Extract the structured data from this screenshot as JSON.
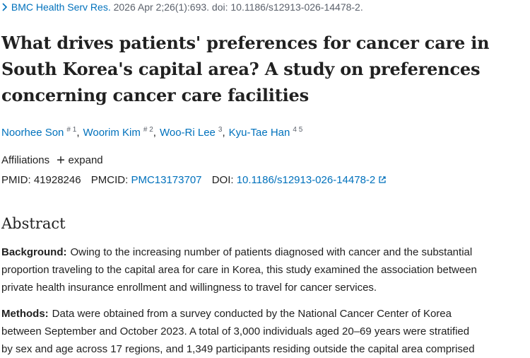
{
  "citation": {
    "journal": "BMC Health Serv Res.",
    "details": "2026 Apr 2;26(1):693. doi: 10.1186/s12913-026-14478-2."
  },
  "title": "What drives patients' preferences for cancer care in South Korea's capital area? A study on preferences concerning cancer care facilities",
  "authors": [
    {
      "name": "Noorhee Son",
      "sup": "# 1",
      "sep": ","
    },
    {
      "name": "Woorim Kim",
      "sup": "# 2",
      "sep": ","
    },
    {
      "name": "Woo-Ri Lee",
      "sup": "3",
      "sep": ","
    },
    {
      "name": "Kyu-Tae Han",
      "sup": "4 5"
    }
  ],
  "affiliations": {
    "label": "Affiliations",
    "toggle": "expand"
  },
  "identifiers": {
    "pmid_label": "PMID:",
    "pmid": "41928246",
    "pmcid_label": "PMCID:",
    "pmcid": "PMC13173707",
    "doi_label": "DOI:",
    "doi": "10.1186/s12913-026-14478-2"
  },
  "abstract": {
    "heading": "Abstract",
    "sections": [
      {
        "label": "Background:",
        "lines": [
          "Owing to the increasing number of patients diagnosed with cancer and the substantial",
          "proportion traveling to the capital area for care in Korea, this study examined the association between",
          "private health insurance enrollment and willingness to travel for cancer services."
        ]
      },
      {
        "label": "Methods:",
        "lines": [
          "Data were obtained from a survey conducted by the National Cancer Center of Korea",
          "between September and October 2023. A total of 3,000 individuals aged 20–69 years were stratified",
          "by sex and age across 17 regions, and 1,349 participants residing outside the capital area comprised"
        ]
      }
    ]
  }
}
